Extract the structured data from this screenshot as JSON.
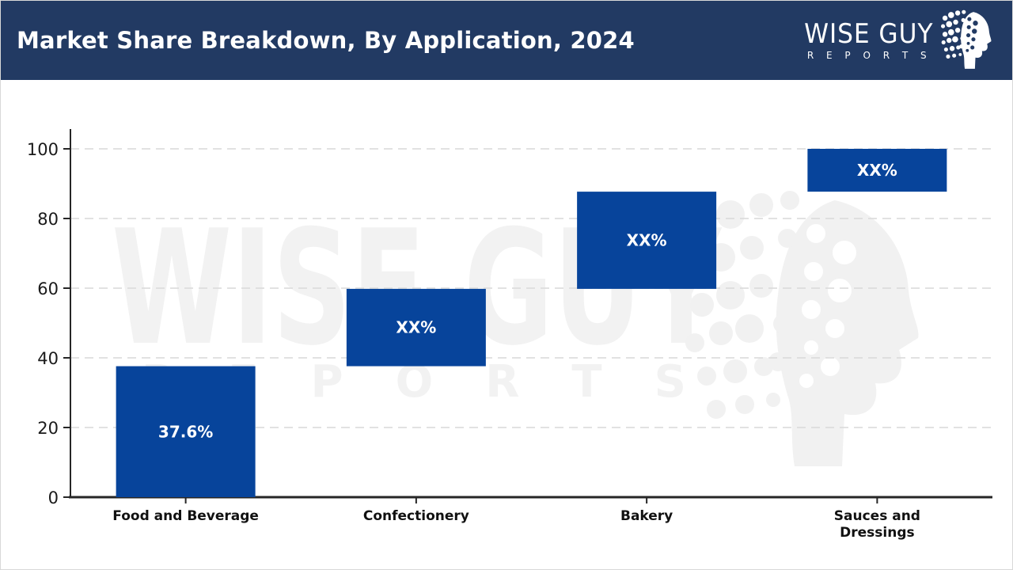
{
  "header": {
    "title": "Market Share Breakdown, By Application, 2024",
    "logo": {
      "line1": "WISE GUY",
      "line2": "R E P O R T S"
    }
  },
  "watermark": {
    "line1": "WISE GUY",
    "line2": "R E P O R T S"
  },
  "colors": {
    "header_bg": "#223a63",
    "bar_blue": "#07449b",
    "title_text": "#ffffff",
    "grid_line": "#d9d9d9",
    "axis_line": "#262626",
    "page_border": "#d8d8d8"
  },
  "chart_data": {
    "type": "bar",
    "subtype": "waterfall",
    "title": "Market Share Breakdown, By Application, 2024",
    "categories": [
      "Food and Beverage",
      "Confectionery",
      "Bakery",
      "Sauces and Dressings"
    ],
    "segments": [
      {
        "label": "Food and Beverage",
        "label_lines": [
          "Food and Beverage"
        ],
        "start": 0,
        "end": 37.6,
        "value_label": "37.6%"
      },
      {
        "label": "Confectionery",
        "label_lines": [
          "Confectionery"
        ],
        "start": 37.6,
        "end": 59.8,
        "value_label": "XX%"
      },
      {
        "label": "Bakery",
        "label_lines": [
          "Bakery"
        ],
        "start": 59.8,
        "end": 87.7,
        "value_label": "XX%"
      },
      {
        "label": "Sauces and Dressings",
        "label_lines": [
          "Sauces and",
          "Dressings"
        ],
        "start": 87.7,
        "end": 100,
        "value_label": "XX%"
      }
    ],
    "ylim": [
      0,
      100
    ],
    "yticks": [
      0,
      20,
      40,
      60,
      80,
      100
    ],
    "grid": "horizontal-dashed",
    "legend": "none",
    "bar_color": "#07449b",
    "value_label_color": "#ffffff"
  }
}
